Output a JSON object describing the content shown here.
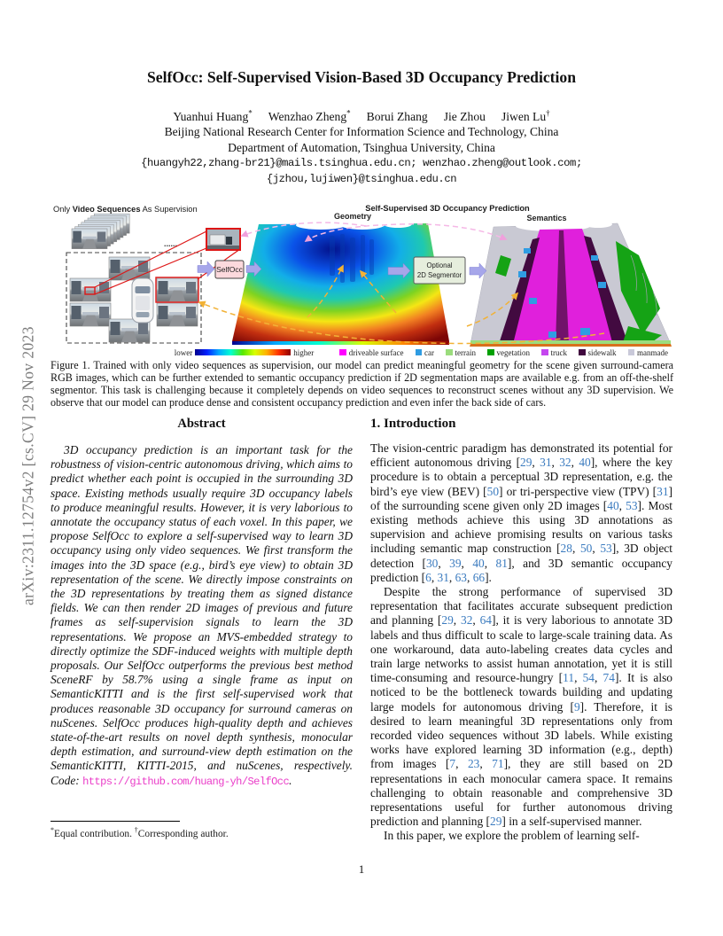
{
  "arxiv_sidebar": "arXiv:2311.12754v2  [cs.CV]  29 Nov 2023",
  "header": {
    "title": "SelfOcc: Self-Supervised Vision-Based 3D Occupancy Prediction",
    "authors": [
      {
        "name": "Yuanhui Huang",
        "sup": "*"
      },
      {
        "name": "Wenzhao Zheng",
        "sup": "*"
      },
      {
        "name": "Borui Zhang",
        "sup": ""
      },
      {
        "name": "Jie Zhou",
        "sup": ""
      },
      {
        "name": "Jiwen Lu",
        "sup": "†"
      }
    ],
    "affiliation1": "Beijing National Research Center for Information Science and Technology, China",
    "affiliation2": "Department of Automation, Tsinghua University, China",
    "email_line1": "{huangyh22,zhang-br21}@mails.tsinghua.edu.cn; wenzhao.zheng@outlook.com;",
    "email_line2": "{jzhou,lujiwen}@tsinghua.edu.cn"
  },
  "figure": {
    "left_label": {
      "pre": "Only ",
      "bold": "Video Sequences",
      "post": " As Supervision"
    },
    "dots": "......",
    "selfocc_label": "SelfOcc",
    "top_label": "Self-Supervised 3D Occupancy Prediction",
    "geometry_label": "Geometry",
    "semantics_label": "Semantics",
    "segmentor_line1": "Optional",
    "segmentor_line2": "2D Segmentor",
    "colorbar": {
      "lower": "lower",
      "higher": "higher"
    },
    "legend": [
      {
        "label": "driveable surface",
        "color": "#ff00ff"
      },
      {
        "label": "car",
        "color": "#2f9ce2"
      },
      {
        "label": "terrain",
        "color": "#9bdc7d"
      },
      {
        "label": "vegetation",
        "color": "#00a000"
      },
      {
        "label": "truck",
        "color": "#c546ef"
      },
      {
        "label": "sidewalk",
        "color": "#40083e"
      },
      {
        "label": "manmade",
        "color": "#c9c9d9"
      }
    ]
  },
  "caption": "Figure 1.  Trained with only video sequences as supervision, our model can predict meaningful geometry for the scene given surround-camera RGB images, which can be further extended to semantic occupancy prediction if 2D segmentation maps are available e.g. from an off-the-shelf segmentor. This task is challenging because it completely depends on video sequences to reconstruct scenes without any 3D supervision. We observe that our model can produce dense and consistent occupancy prediction and even infer the back side of cars.",
  "abstract": {
    "heading": "Abstract",
    "body": "3D occupancy prediction is an important task for the robustness of vision-centric autonomous driving, which aims to predict whether each point is occupied in the surrounding 3D space. Existing methods usually require 3D occupancy labels to produce meaningful results. However, it is very laborious to annotate the occupancy status of each voxel. In this paper, we propose SelfOcc to explore a self-supervised way to learn 3D occupancy using only video sequences. We first transform the images into the 3D space (e.g., bird’s eye view) to obtain 3D representation of the scene. We directly impose constraints on the 3D representations by treating them as signed distance fields. We can then render 2D images of previous and future frames as self-supervision signals to learn the 3D representations. We propose an MVS-embedded strategy to directly optimize the SDF-induced weights with multiple depth proposals. Our SelfOcc outperforms the previous best method SceneRF by 58.7% using a single frame as input on SemanticKITTI and is the first self-supervised work that produces reasonable 3D occupancy for surround cameras on nuScenes. SelfOcc produces high-quality depth and achieves state-of-the-art results on novel depth synthesis, monocular depth estimation, and surround-view depth estimation on the SemanticKITTI, KITTI-2015, and nuScenes, respectively.",
    "code_label": "Code:",
    "code_url": "https://github.com/huang-yh/SelfOcc",
    "code_suffix": "."
  },
  "introduction": {
    "heading": "1. Introduction",
    "paragraphs": [
      "The vision-centric paradigm has demonstrated its potential for efficient autonomous driving [29, 31, 32, 40], where the key procedure is to obtain a perceptual 3D representation, e.g. the bird’s eye view (BEV) [50] or tri-perspective view (TPV) [31] of the surrounding scene given only 2D images [40, 53].  Most existing methods achieve this using 3D annotations as supervision and achieve promising results on various tasks including semantic map construction [28, 50, 53], 3D object detection [30, 39, 40, 81], and 3D semantic occupancy prediction [6, 31, 63, 66].",
      "Despite the strong performance of supervised 3D representation that facilitates accurate subsequent prediction and planning [29, 32, 64], it is very laborious to annotate 3D labels and thus difficult to scale to large-scale training data. As one workaround, data auto-labeling creates data cycles and train large networks to assist human annotation, yet it is still time-consuming and resource-hungry [11, 54, 74]. It is also noticed to be the bottleneck towards building and updating large models for autonomous driving [9]. Therefore, it is desired to learn meaningful 3D representations only from recorded video sequences without 3D labels.  While existing works have explored learning 3D information (e.g., depth) from images [7, 23, 71], they are still based on 2D representations in each monocular camera space.  It remains challenging to obtain reasonable and comprehensive 3D representations useful for further autonomous driving prediction and planning [29] in a self-supervised manner.",
      "In this paper, we explore the problem of learning self-"
    ]
  },
  "footnote": {
    "sup1": "*",
    "text1": "Equal contribution. ",
    "sup2": "†",
    "text2": "Corresponding author."
  },
  "page_number": "1",
  "colors": {
    "citation": "#3b7bbf",
    "link": "#ea3cc8",
    "geometry_low": "#03128c",
    "geometry_high": "#7d0606",
    "arrow_lavender": "#a6a6ea",
    "arrow_pink": "#f0a0dc",
    "arrow_yellow": "#f2b236"
  }
}
